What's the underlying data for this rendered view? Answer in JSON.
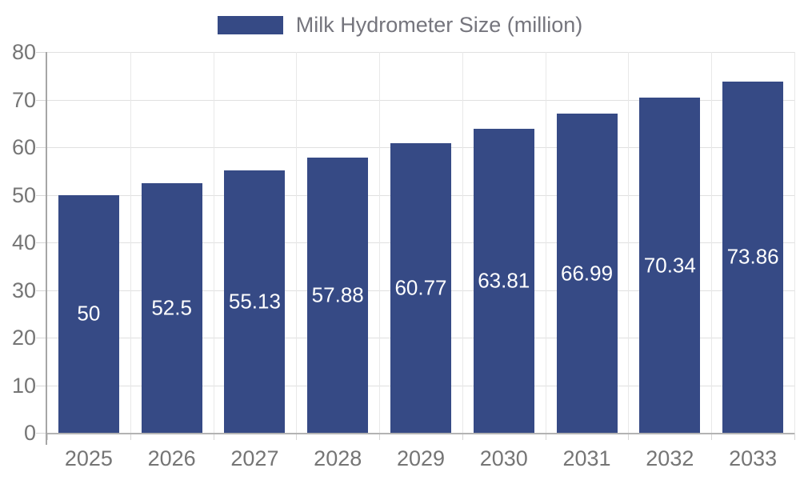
{
  "chart_data": {
    "type": "bar",
    "title": "",
    "legend": [
      {
        "label": "Milk Hydrometer Size (million)"
      }
    ],
    "legend_position": "top-center",
    "categories": [
      "2025",
      "2026",
      "2027",
      "2028",
      "2029",
      "2030",
      "2031",
      "2032",
      "2033"
    ],
    "series": [
      {
        "name": "Milk Hydrometer Size (million)",
        "values": [
          50,
          52.5,
          55.13,
          57.88,
          60.77,
          63.81,
          66.99,
          70.34,
          73.86
        ],
        "value_labels": [
          "50",
          "52.5",
          "55.13",
          "57.88",
          "60.77",
          "63.81",
          "66.99",
          "70.34",
          "73.86"
        ]
      }
    ],
    "xlabel": "",
    "ylabel": "",
    "ylim": [
      0,
      80
    ],
    "yticks": [
      0,
      10,
      20,
      30,
      40,
      50,
      60,
      70,
      80
    ],
    "grid": true,
    "value_labels_position": "inside-center",
    "colors": {
      "bar": "#364A85",
      "value_label_text": "#ffffff",
      "axis_label_text": "#757575",
      "legend_text": "#75757d",
      "h_gridline": "#e0e0e0",
      "v_gridline": "#e8e8e8",
      "tick": "#d6d6d6",
      "y_axis_line": "#a6a6a6",
      "x_axis_line": "#b3b3b3",
      "background": "#ffffff"
    }
  }
}
